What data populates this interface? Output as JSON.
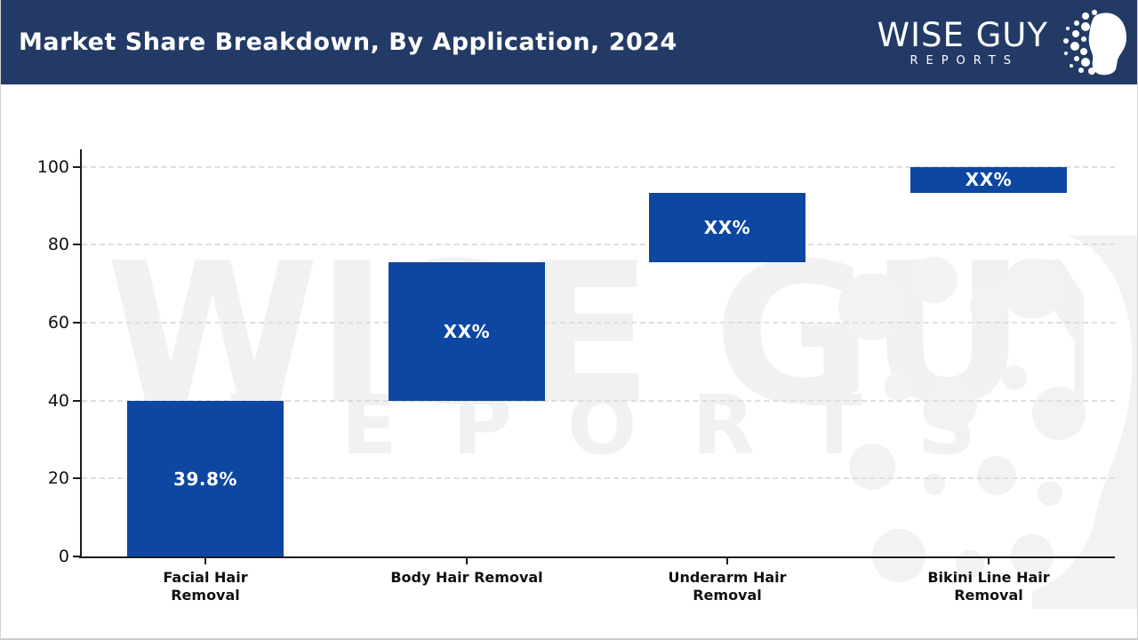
{
  "header": {
    "title": "Market Share Breakdown, By Application, 2024",
    "logo": {
      "line1": "WISE GUY",
      "line2": "REPORTS"
    }
  },
  "watermark": {
    "line1": "WISE GUY",
    "line2": "REPORTS"
  },
  "chart_data": {
    "type": "bar",
    "subtype": "floating-stacked-percentage (waterfall style, partially masked values)",
    "title": "Market Share Breakdown, By Application, 2024",
    "categories": [
      "Facial Hair\nRemoval",
      "Body Hair Removal",
      "Underarm Hair\nRemoval",
      "Bikini Line Hair\nRemoval"
    ],
    "segments": [
      {
        "category": "Facial Hair Removal",
        "label": "39.8%",
        "start": 0,
        "end": 39.8
      },
      {
        "category": "Body Hair Removal",
        "label": "XX%",
        "start": 39.8,
        "end": 75.5
      },
      {
        "category": "Underarm Hair Removal",
        "label": "XX%",
        "start": 75.5,
        "end": 93.3
      },
      {
        "category": "Bikini Line Hair Removal",
        "label": "XX%",
        "start": 93.3,
        "end": 100
      }
    ],
    "yticks": [
      0,
      20,
      40,
      60,
      80,
      100
    ],
    "ylim": [
      0,
      100
    ],
    "xlabel": "",
    "ylabel": "",
    "grid": "horizontal dashed",
    "legend": "none",
    "bar_color": "#0d47a1",
    "grid_color": "#dedede",
    "header_color": "#233a66",
    "value_label_color": "#ffffff"
  }
}
